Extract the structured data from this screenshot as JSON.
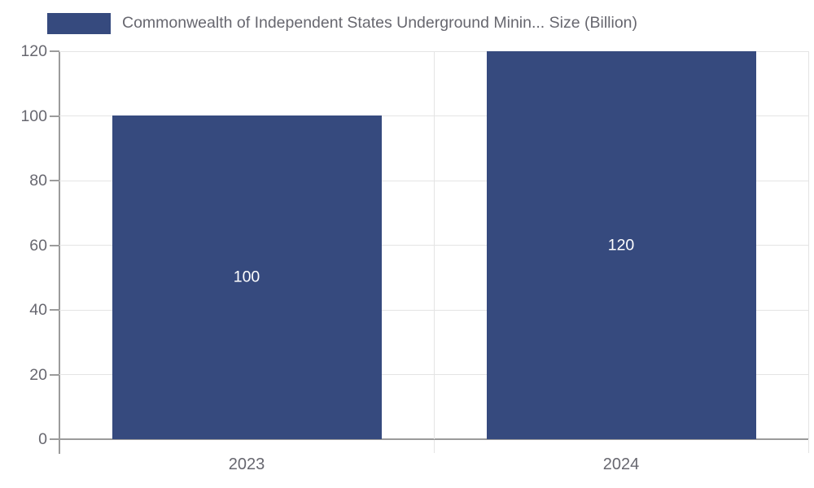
{
  "chart_data": {
    "type": "bar",
    "title": "",
    "legend": {
      "position": "top-left",
      "label": "Commonwealth of Independent States Underground Minin... Size (Billion)"
    },
    "categories": [
      "2023",
      "2024"
    ],
    "series": [
      {
        "name": "Commonwealth of Independent States Underground Minin... Size (Billion)",
        "values": [
          100,
          120
        ]
      }
    ],
    "value_labels": [
      "100",
      "120"
    ],
    "value_labels_position": "center-of-bar",
    "xlabel": "",
    "ylabel": "",
    "ylim": [
      0,
      120
    ],
    "yticks": [
      0,
      20,
      40,
      60,
      80,
      100,
      120
    ],
    "grid": true
  },
  "colors": {
    "bar": "#364a7e",
    "axis": "#9b9b9b",
    "grid": "#e4e4e4",
    "text": "#67676f",
    "value_label": "#ffffff",
    "background": "#ffffff"
  }
}
